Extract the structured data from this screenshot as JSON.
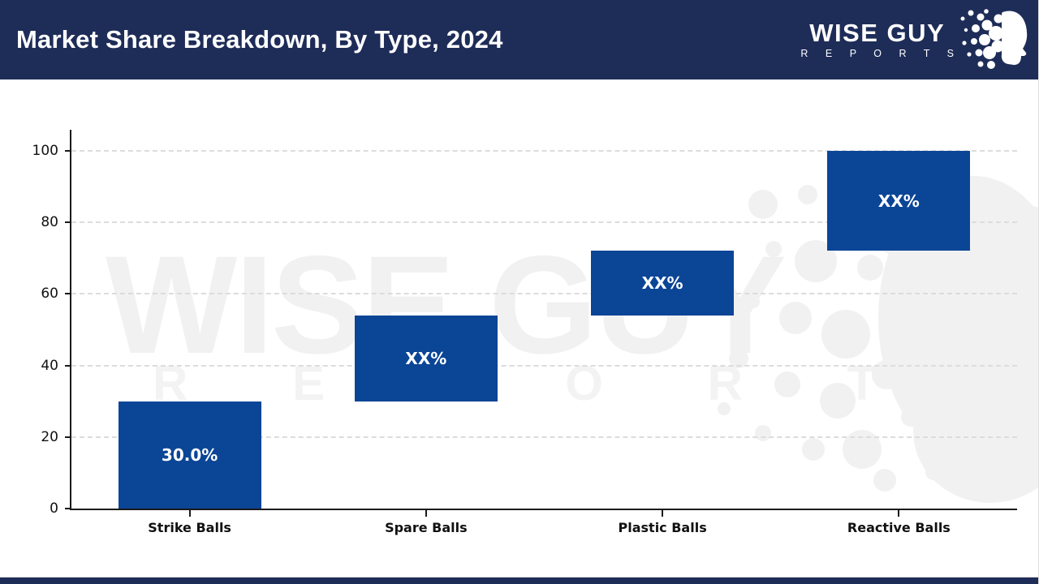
{
  "header": {
    "title": "Market Share Breakdown, By Type, 2024",
    "logo": {
      "wordmark": "WISE GUY",
      "subtext": "R E P O R T S"
    }
  },
  "watermark": {
    "line1": "WISE GUY",
    "line2": "R E P O R T S"
  },
  "colors": {
    "header_bg": "#1e2c58",
    "footer_bg": "#1e2c58",
    "bar": "#0b4596",
    "bar_label": "#ffffff",
    "grid": "#dcdcdc",
    "axis": "#1a1a1a",
    "watermark": "#f1f1f1"
  },
  "chart_data": {
    "type": "bar",
    "subtype": "waterfall-floating-segments",
    "title": "Market Share Breakdown, By Type, 2024",
    "xlabel": "",
    "ylabel": "",
    "categories": [
      "Strike Balls",
      "Spare Balls",
      "Plastic Balls",
      "Reactive Balls"
    ],
    "segments": [
      {
        "category": "Strike Balls",
        "start": 0,
        "end": 30,
        "label": "30.0%"
      },
      {
        "category": "Spare Balls",
        "start": 30,
        "end": 54,
        "label": "XX%"
      },
      {
        "category": "Plastic Balls",
        "start": 54,
        "end": 72,
        "label": "XX%"
      },
      {
        "category": "Reactive Balls",
        "start": 72,
        "end": 100,
        "label": "XX%"
      }
    ],
    "yticks": [
      0,
      20,
      40,
      60,
      80,
      100
    ],
    "ylim": [
      0,
      106
    ],
    "grid": "horizontal-dashed",
    "legend": "none"
  }
}
